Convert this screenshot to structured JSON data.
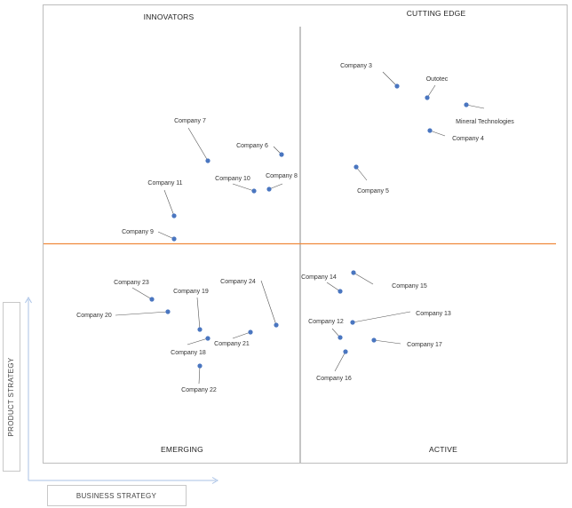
{
  "quadrants": {
    "top_left": "INNOVATORS",
    "top_right": "CUTTING EDGE",
    "bottom_left": "EMERGING",
    "bottom_right": "ACTIVE"
  },
  "axes": {
    "x_label": "BUSINESS STRATEGY",
    "y_label": "PRODUCT STRATEGY"
  },
  "colors": {
    "point": "#4a76c0",
    "divider_h": "#f08a3c",
    "divider_v": "#888888",
    "arrow": "#a9c2e6"
  },
  "companies": [
    {
      "name": "Company 3"
    },
    {
      "name": "Outotec"
    },
    {
      "name": "Mineral Technologies"
    },
    {
      "name": "Company 4"
    },
    {
      "name": "Company 5"
    },
    {
      "name": "Company 7"
    },
    {
      "name": "Company 6"
    },
    {
      "name": "Company 8"
    },
    {
      "name": "Company 10"
    },
    {
      "name": "Company 11"
    },
    {
      "name": "Company 9"
    },
    {
      "name": "Company 23"
    },
    {
      "name": "Company 19"
    },
    {
      "name": "Company 20"
    },
    {
      "name": "Company 24"
    },
    {
      "name": "Company 21"
    },
    {
      "name": "Company 18"
    },
    {
      "name": "Company 22"
    },
    {
      "name": "Company 14"
    },
    {
      "name": "Company 15"
    },
    {
      "name": "Company 12"
    },
    {
      "name": "Company 13"
    },
    {
      "name": "Company 17"
    },
    {
      "name": "Company 16"
    }
  ]
}
